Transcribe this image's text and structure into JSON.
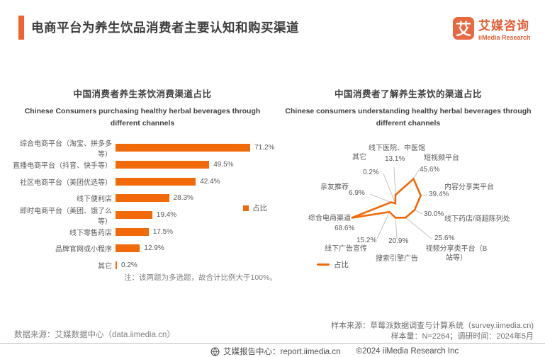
{
  "header": {
    "title": "电商平台为养生饮品消费者主要认知和购买渠道",
    "logo": {
      "mark": "艾",
      "name_cn": "艾媒咨询",
      "name_en": "iiMedia Research"
    }
  },
  "colors": {
    "brand_orange": "#F2690A",
    "logo_orange": "#E8683F",
    "accent_bar": "#F0622E",
    "leader_line": "#C4C4C4",
    "label_gray": "#595959"
  },
  "chart_data": [
    {
      "type": "bar",
      "orientation": "horizontal",
      "title": "中国消费者养生茶饮消费渠道占比",
      "subtitle": "Chinese Consumers purchasing healthy herbal beverages through different channels",
      "legend": [
        "占比"
      ],
      "categories": [
        "综合电商平台（淘宝、拼多多等）",
        "直播电商平台（抖音、快手等）",
        "社区电商平台（美团优选等）",
        "线下便利店",
        "即时电商平台（美团、饿了么等）",
        "线下零售药店",
        "品牌官网或小程序",
        "其它"
      ],
      "values": [
        71.2,
        49.5,
        42.4,
        28.3,
        19.4,
        17.5,
        12.9,
        0.2
      ],
      "value_labels": [
        "71.2%",
        "49.5%",
        "42.4%",
        "28.3%",
        "19.4%",
        "17.5%",
        "12.9%",
        "0.2%"
      ],
      "xlim": [
        0,
        80
      ],
      "note": "注：该两题为多选题，故合计比例大于100%。"
    },
    {
      "type": "radar",
      "title": "中国消费者了解养生茶饮的渠道占比",
      "subtitle": "Chinese consumers understanding healthy herbal beverages through different channels",
      "legend": [
        "占比"
      ],
      "categories": [
        "线下医院、中医馆",
        "短视频平台",
        "内容分享类平台",
        "线下药店/商超陈列处",
        "视频分享类平台（B站等）",
        "搜索引擎广告",
        "线下广告宣传",
        "综合电商渠道",
        "亲友推荐",
        "其它"
      ],
      "values": [
        13.1,
        45.6,
        39.4,
        30.0,
        25.6,
        20.9,
        15.2,
        68.6,
        6.9,
        0.2
      ],
      "value_labels": [
        "13.1%",
        "45.6%",
        "39.4%",
        "30.0%",
        "25.6%",
        "20.9%",
        "15.2%",
        "68.6%",
        "6.9%",
        "0.2%"
      ]
    }
  ],
  "footer": {
    "data_source": "数据来源：艾媒数据中心（data.iimedia.cn）",
    "sample_source": "样本来源：草莓派数据调查与计算系统（survey.iimedia.cn)",
    "sample_info": "样本量：N=2264；调研时间：2024年5月",
    "report_center": "艾媒报告中心：report.iimedia.cn",
    "copyright": "©2024  iiMedia Research Inc"
  }
}
